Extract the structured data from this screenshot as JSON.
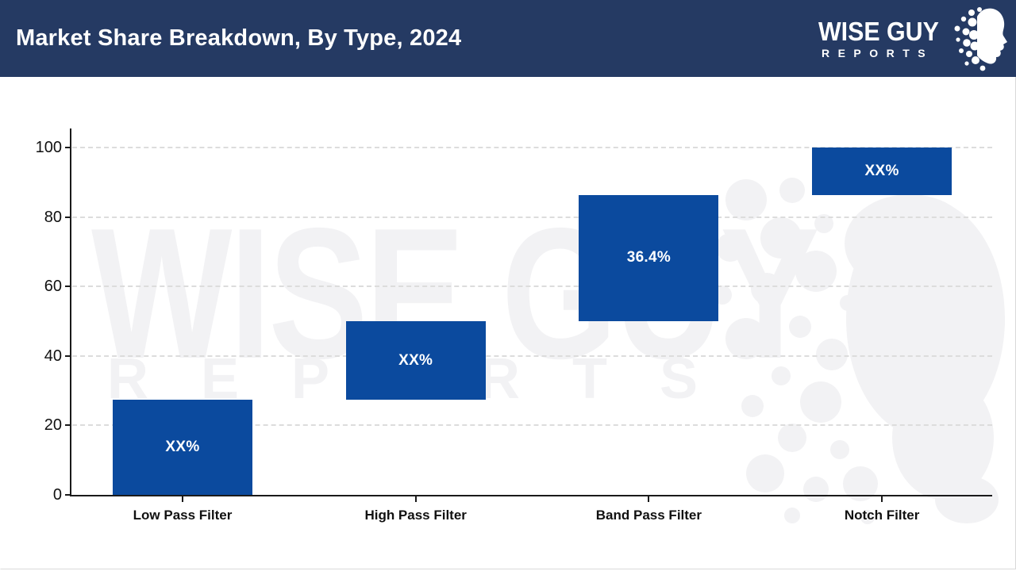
{
  "header": {
    "title": "Market Share Breakdown, By Type, 2024",
    "logo": {
      "wordmark": "WISE GUY",
      "subtitle": "REPORTS"
    }
  },
  "watermark": {
    "wordmark": "WISE GUY",
    "subtitle": "REPORTS"
  },
  "colors": {
    "header_bg": "#253a63",
    "bar": "#0b4a9e",
    "grid": "#dcdcdc",
    "axis": "#1a1a1a",
    "watermark": "#f2f2f4",
    "bar_label": "#ffffff"
  },
  "chart_data": {
    "type": "bar",
    "subtype": "waterfall",
    "title": "Market Share Breakdown, By Type, 2024",
    "categories": [
      "Low Pass Filter",
      "High Pass Filter",
      "Band Pass Filter",
      "Notch Filter"
    ],
    "segments": [
      {
        "start": 0,
        "end": 27.3,
        "value": 27.3,
        "label": "XX%"
      },
      {
        "start": 27.3,
        "end": 50.0,
        "value": 22.7,
        "label": "XX%"
      },
      {
        "start": 50.0,
        "end": 86.4,
        "value": 36.4,
        "label": "36.4%"
      },
      {
        "start": 86.4,
        "end": 100,
        "value": 13.6,
        "label": "XX%"
      }
    ],
    "yticks": [
      0,
      20,
      40,
      60,
      80,
      100
    ],
    "ylim": [
      0,
      105
    ],
    "xlabel": "",
    "ylabel": "",
    "grid": "dashed-horizontal",
    "legend": "none"
  }
}
